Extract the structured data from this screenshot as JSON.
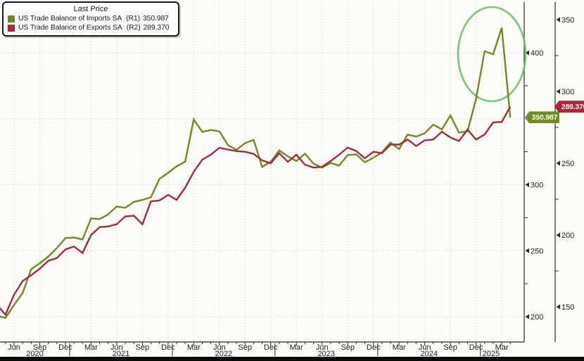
{
  "colors": {
    "background": "#fcfcf9",
    "grid": "#c6c6c0",
    "axis": "#2a2a2a",
    "imports_green": "#6d8b22",
    "exports_red": "#a42a3c",
    "flag_imports_bg": "#6f8e1f",
    "flag_exports_bg": "#b02538",
    "annotation_green": "#63bb63",
    "bottom_bar": "#0a0a0a"
  },
  "legend": {
    "title": "Last Price",
    "items": [
      {
        "label": "US Trade Balance of Imports SA",
        "axis_ref": "(R1)",
        "value": "350.987",
        "color": "#6d8b22"
      },
      {
        "label": "US Trade Balance of Exports SA",
        "axis_ref": "(R2)",
        "value": "289.370",
        "color": "#a42a3c"
      }
    ]
  },
  "price_flags": [
    {
      "value": "350.987",
      "bg": "#6f8e1f",
      "axis": "R1"
    },
    {
      "value": "289.370",
      "bg": "#b02538",
      "axis": "R2"
    }
  ],
  "chart_data": {
    "type": "line",
    "title": "Last Price",
    "frequency": "monthly",
    "x_start": "2020-04",
    "x_end": "2025-04",
    "x_quarter_labels": [
      "Jun",
      "Sep",
      "Dec",
      "Mar",
      "Jun",
      "Sep",
      "Dec",
      "Mar",
      "Jun",
      "Sep",
      "Dec",
      "Mar",
      "Jun",
      "Sep",
      "Dec",
      "Mar",
      "Jun",
      "Sep",
      "Dec",
      "Mar"
    ],
    "year_labels": [
      "2020",
      "2021",
      "2022",
      "2023",
      "2024",
      "2025"
    ],
    "axes": {
      "r1": {
        "name": "R1",
        "side": "right-inner",
        "ticks": [
          400,
          350,
          300,
          250,
          200
        ],
        "minor_ticks": [
          375,
          325,
          275,
          225
        ]
      },
      "r2": {
        "name": "R2",
        "side": "right-outer",
        "ticks": [
          350,
          300,
          250,
          200,
          150
        ],
        "minor_ticks": [
          325,
          275,
          225,
          175
        ]
      }
    },
    "series": [
      {
        "name": "US Trade Balance of Imports SA",
        "axis": "R1",
        "color": "#6d8b22",
        "last_value": 350.987,
        "values": [
          200.7,
          199.1,
          208.9,
          218,
          236,
          240.5,
          245.5,
          252,
          259.5,
          260,
          258.5,
          274.5,
          274,
          277.5,
          283.5,
          282.5,
          287,
          288.5,
          290.5,
          304.5,
          309,
          314,
          317.5,
          349.5,
          340,
          341.5,
          340.5,
          330,
          326.5,
          331.5,
          334,
          313.5,
          317.5,
          326,
          321.5,
          318,
          323.5,
          316,
          313,
          316.5,
          314.5,
          322.5,
          323,
          317,
          320.5,
          324.5,
          332,
          327,
          338,
          336.5,
          339,
          345.5,
          342,
          352.5,
          339.5,
          340.5,
          365,
          401.2,
          398.9,
          419,
          350.987
        ]
      },
      {
        "name": "US Trade Balance of Exports SA",
        "axis": "R2",
        "color": "#a42a3c",
        "last_value": 289.37,
        "values": [
          151.3,
          144.5,
          158.5,
          168,
          172,
          176.5,
          182,
          184,
          190,
          192,
          187.5,
          200,
          205.5,
          206,
          207.5,
          213,
          213.5,
          207.5,
          223.5,
          224,
          228,
          224.5,
          233,
          244,
          252.5,
          256,
          260.8,
          259.5,
          258.5,
          258,
          256.5,
          252,
          250,
          257,
          251,
          256,
          249,
          247,
          247.5,
          251.5,
          256,
          261,
          258.5,
          253.5,
          258,
          257,
          263,
          263,
          266.5,
          262,
          266,
          266.5,
          272,
          268,
          265.5,
          273.5,
          266.5,
          270,
          278.5,
          278.8,
          289.37
        ]
      }
    ],
    "annotation": {
      "shape": "ellipse",
      "color": "#63bb63"
    }
  }
}
